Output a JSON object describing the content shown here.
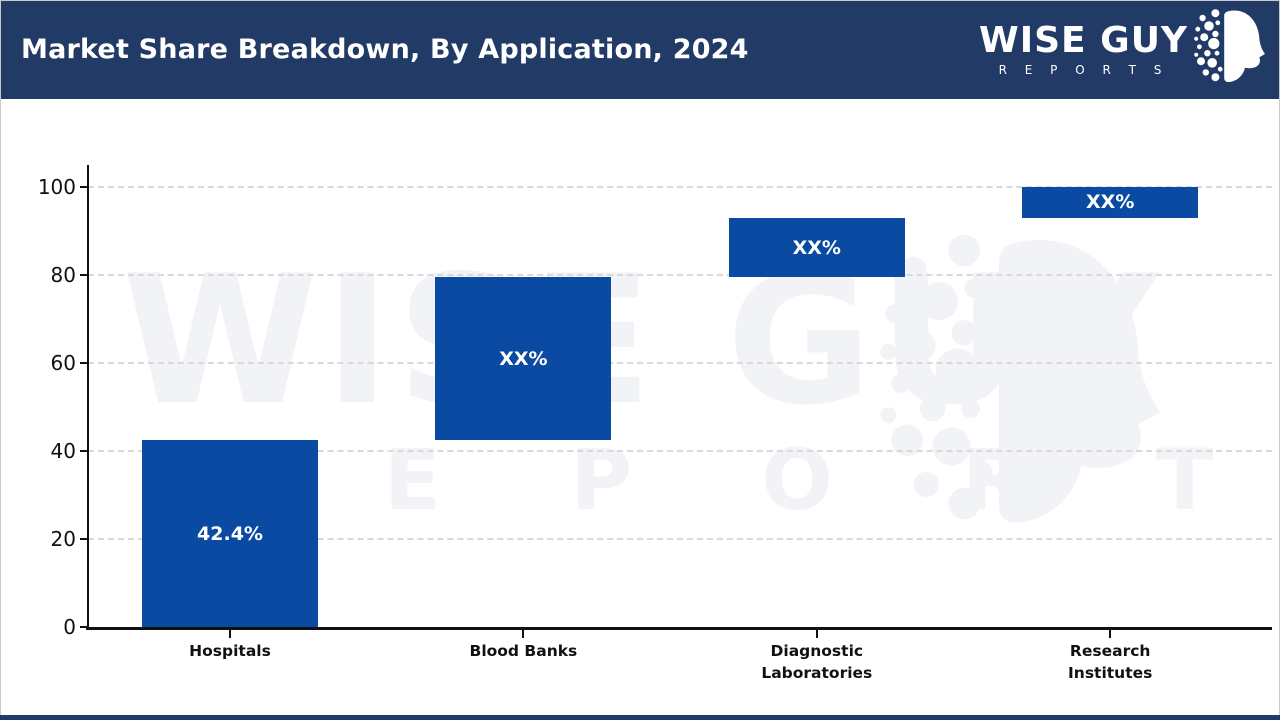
{
  "header": {
    "title": "Market Share Breakdown, By Application, 2024",
    "logo": {
      "name": "WISE GUY",
      "subtitle": "R E P O R T S"
    }
  },
  "watermark": {
    "line1": "WISE GUY",
    "line2": "R E P O R T S"
  },
  "chart_data": {
    "type": "bar",
    "subtype": "waterfall",
    "title": "Market Share Breakdown, By Application, 2024",
    "categories": [
      "Hospitals",
      "Blood Banks",
      "Diagnostic Laboratories",
      "Research Institutes"
    ],
    "category_display_lines": [
      [
        "Hospitals"
      ],
      [
        "Blood Banks"
      ],
      [
        "Diagnostic",
        "Laboratories"
      ],
      [
        "Research",
        "Institutes"
      ]
    ],
    "bars": [
      {
        "category": "Hospitals",
        "start": 0,
        "end": 42.4,
        "label": "42.4%"
      },
      {
        "category": "Blood Banks",
        "start": 42.4,
        "end": 79.5,
        "label": "XX%"
      },
      {
        "category": "Diagnostic Laboratories",
        "start": 79.5,
        "end": 93,
        "label": "XX%"
      },
      {
        "category": "Research Institutes",
        "start": 93,
        "end": 100,
        "label": "XX%"
      }
    ],
    "y_ticks": [
      0,
      20,
      40,
      60,
      80,
      100
    ],
    "ylim": [
      0,
      105
    ],
    "grid": true,
    "legend": false,
    "xlabel": "",
    "ylabel": "",
    "bar_color": "#0B4AA2",
    "bar_label_color": "#FFFFFF",
    "axis_color": "#111111",
    "grid_color": "#D9D9D9",
    "tick_label_color": "#111111"
  },
  "colors": {
    "header_bg": "#213A66",
    "page_bg": "#FFFFFF",
    "watermark": "#F2F3F6",
    "footer_bar": "#213A66"
  }
}
